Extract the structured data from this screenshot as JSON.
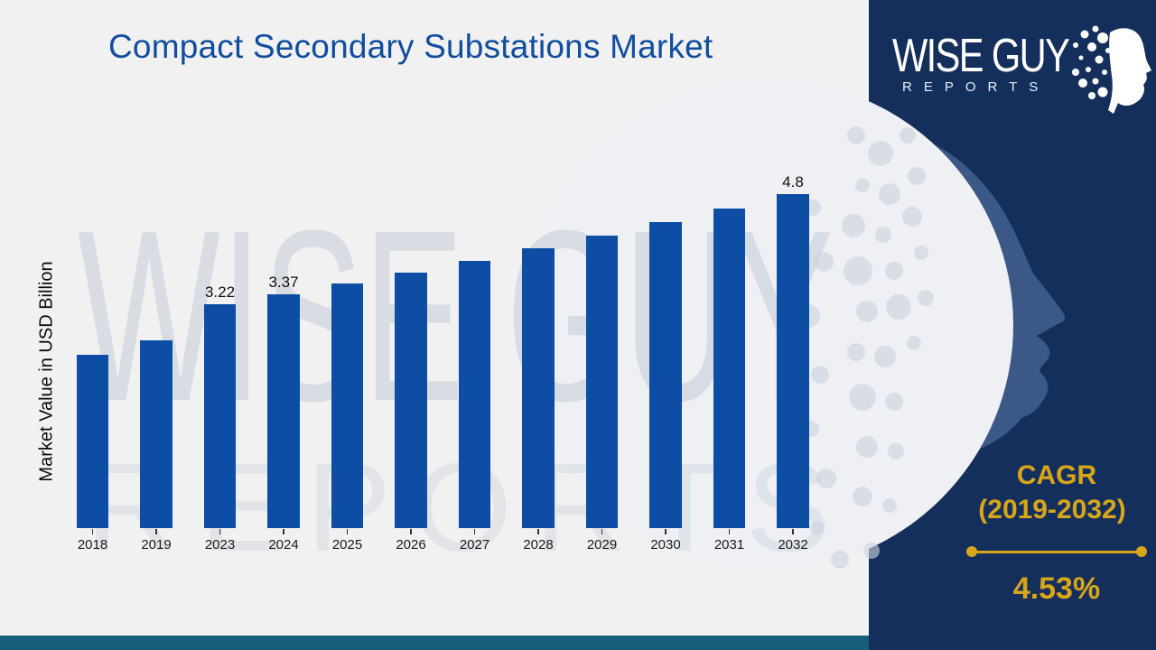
{
  "title": "Compact Secondary Substations Market",
  "y_axis_label": "Market Value in USD Billion",
  "watermark": {
    "line1": "WISE GUY",
    "line2": "REPORTS"
  },
  "logo": {
    "name": "WISE GUY",
    "sub": "REPORTS",
    "icon": "head-profile-dots-icon"
  },
  "cagr": {
    "heading": "CAGR",
    "range": "(2019-2032)",
    "value": "4.53%"
  },
  "colors": {
    "bar": "#0d4da4",
    "title_text": "#114d9e",
    "panel_navy": "#152f5c",
    "gold": "#d7a619",
    "teal_strip": "#175f7c",
    "face_silhouette": "#3c5886",
    "background": "#f1f1f2"
  },
  "chart_data": {
    "type": "bar",
    "title": "Compact Secondary Substations Market",
    "xlabel": "",
    "ylabel": "Market Value in USD Billion",
    "unit": "USD Billion",
    "categories": [
      "2018",
      "2019",
      "2023",
      "2024",
      "2025",
      "2026",
      "2027",
      "2028",
      "2029",
      "2030",
      "2031",
      "2032"
    ],
    "values": [
      2.49,
      2.7,
      3.22,
      3.37,
      3.52,
      3.68,
      3.85,
      4.02,
      4.21,
      4.4,
      4.6,
      4.8
    ],
    "bar_value_labels": [
      "",
      "",
      "3.22",
      "3.37",
      "",
      "",
      "",
      "",
      "",
      "",
      "",
      "4.8"
    ],
    "ylim": [
      0,
      5.2
    ],
    "grid": false,
    "legend": null,
    "bar_color": "#0d4da4"
  }
}
